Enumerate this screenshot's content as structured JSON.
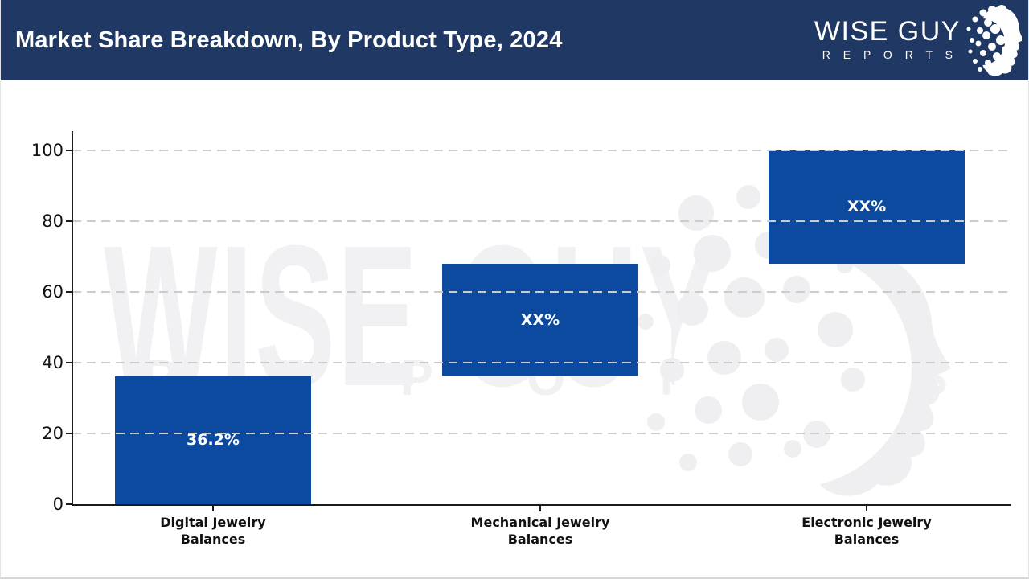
{
  "header": {
    "title": "Market Share Breakdown, By Product Type, 2024",
    "logo": {
      "line1": "WISE GUY",
      "line2": "R E P O R T S"
    }
  },
  "watermark": {
    "line1": "WISE GUY",
    "line2": "R E P O R T S"
  },
  "colors": {
    "header_bg": "#1f3864",
    "bar": "#0b4a9e",
    "grid": "#cccccc",
    "axis": "#1a1a1a",
    "bar_label_text": "#ffffff",
    "watermark": "#f1f1f4"
  },
  "chart_data": {
    "type": "bar",
    "subtype": "waterfall-breakdown",
    "title": "Market Share Breakdown, By Product Type, 2024",
    "xlabel": "",
    "ylabel": "",
    "ylim": [
      0,
      100
    ],
    "yticks": [
      0,
      20,
      40,
      60,
      80,
      100
    ],
    "grid": "horizontal dashed lines, drawn above bars",
    "legend": "none",
    "categories": [
      {
        "line1": "Digital Jewelry",
        "line2": "Balances"
      },
      {
        "line1": "Mechanical Jewelry",
        "line2": "Balances"
      },
      {
        "line1": "Electronic Jewelry",
        "line2": "Balances"
      }
    ],
    "segments": [
      {
        "category": "Digital Jewelry Balances",
        "label": "36.2%",
        "start": 0,
        "end": 36.2
      },
      {
        "category": "Mechanical Jewelry Balances",
        "label": "XX%",
        "start": 36.2,
        "end": 68
      },
      {
        "category": "Electronic Jewelry Balances",
        "label": "XX%",
        "start": 68,
        "end": 100
      }
    ]
  }
}
